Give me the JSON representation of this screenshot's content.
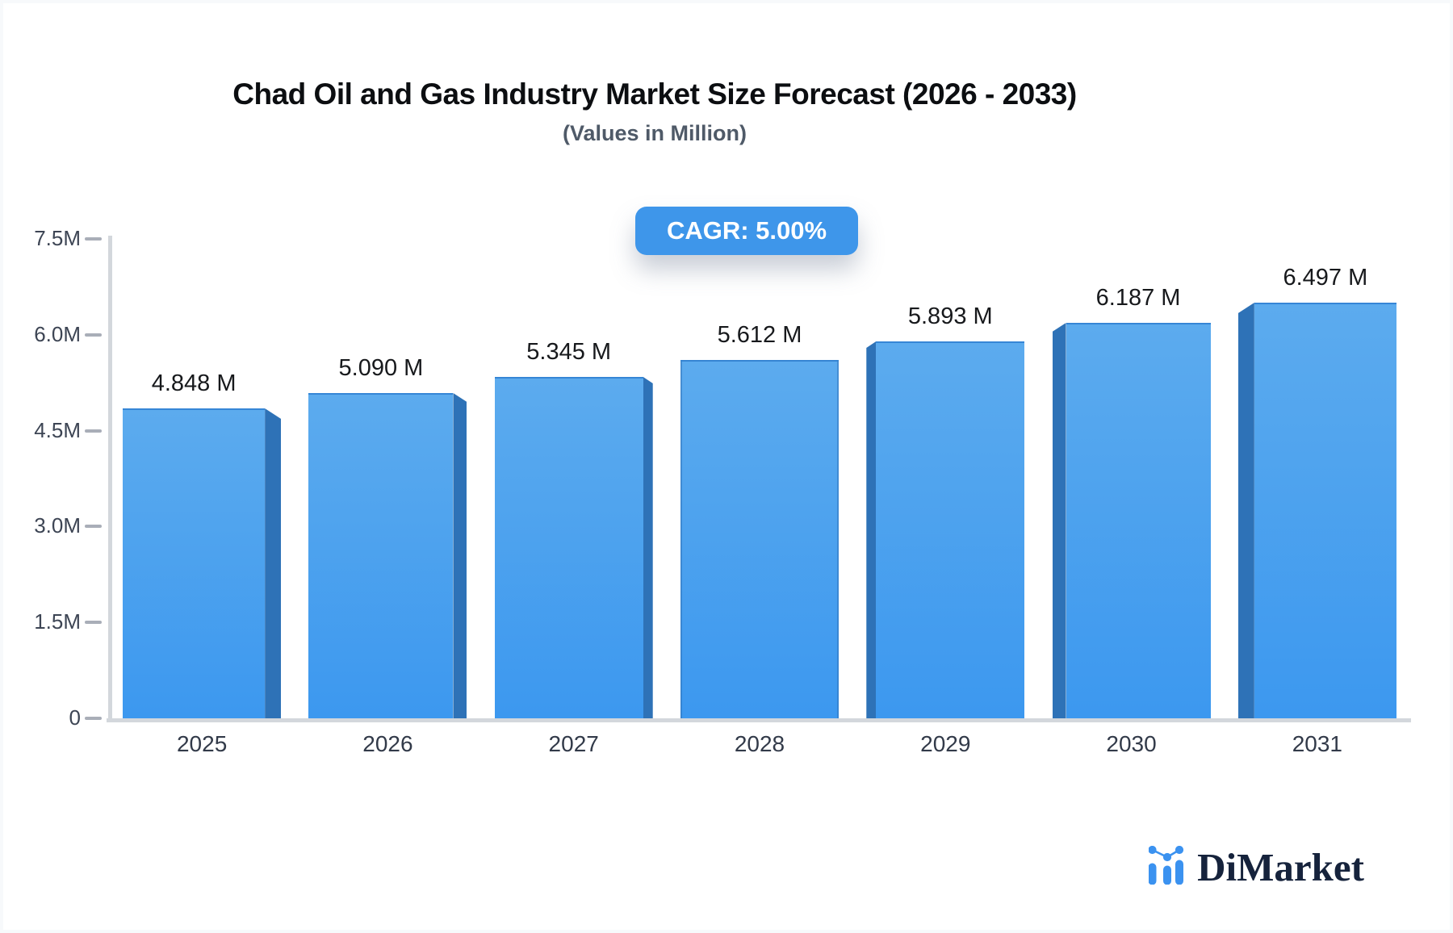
{
  "title": "Chad Oil and Gas Industry Market Size Forecast (2026 - 2033)",
  "subtitle": "(Values in Million)",
  "badge": {
    "label": "CAGR: 5.00%"
  },
  "logo": {
    "text": "DiMarket"
  },
  "colors": {
    "badge_bg": "#3e96ea",
    "bar_face_top": "#5cabee",
    "bar_face_bottom": "#3c98ef",
    "bar_bevel": "#2e72b7",
    "axis_line": "#d3d7dc",
    "tick_dash": "#a9aeb8",
    "logo_blue": "#3b92f0",
    "logo_navy": "#16233c"
  },
  "chart_data": {
    "type": "bar",
    "title": "Chad Oil and Gas Industry Market Size Forecast (2026 - 2033)",
    "subtitle": "(Values in Million)",
    "categories": [
      "2025",
      "2026",
      "2027",
      "2028",
      "2029",
      "2030",
      "2031"
    ],
    "values": [
      4.848,
      5.09,
      5.345,
      5.612,
      5.893,
      6.187,
      6.497
    ],
    "value_labels": [
      "4.848 M",
      "5.090 M",
      "5.345 M",
      "5.612 M",
      "5.893 M",
      "6.187 M",
      "6.497 M"
    ],
    "xlabel": "",
    "ylabel": "",
    "ylim": [
      0,
      7.5
    ],
    "yticks": {
      "values": [
        7.5,
        6.0,
        4.5,
        3.0,
        1.5,
        0
      ],
      "labels": [
        "7.5M",
        "6.0M",
        "4.5M",
        "3.0M",
        "1.5M",
        "0"
      ]
    },
    "grid": false,
    "legend": false,
    "annotation": "CAGR: 5.00%"
  }
}
